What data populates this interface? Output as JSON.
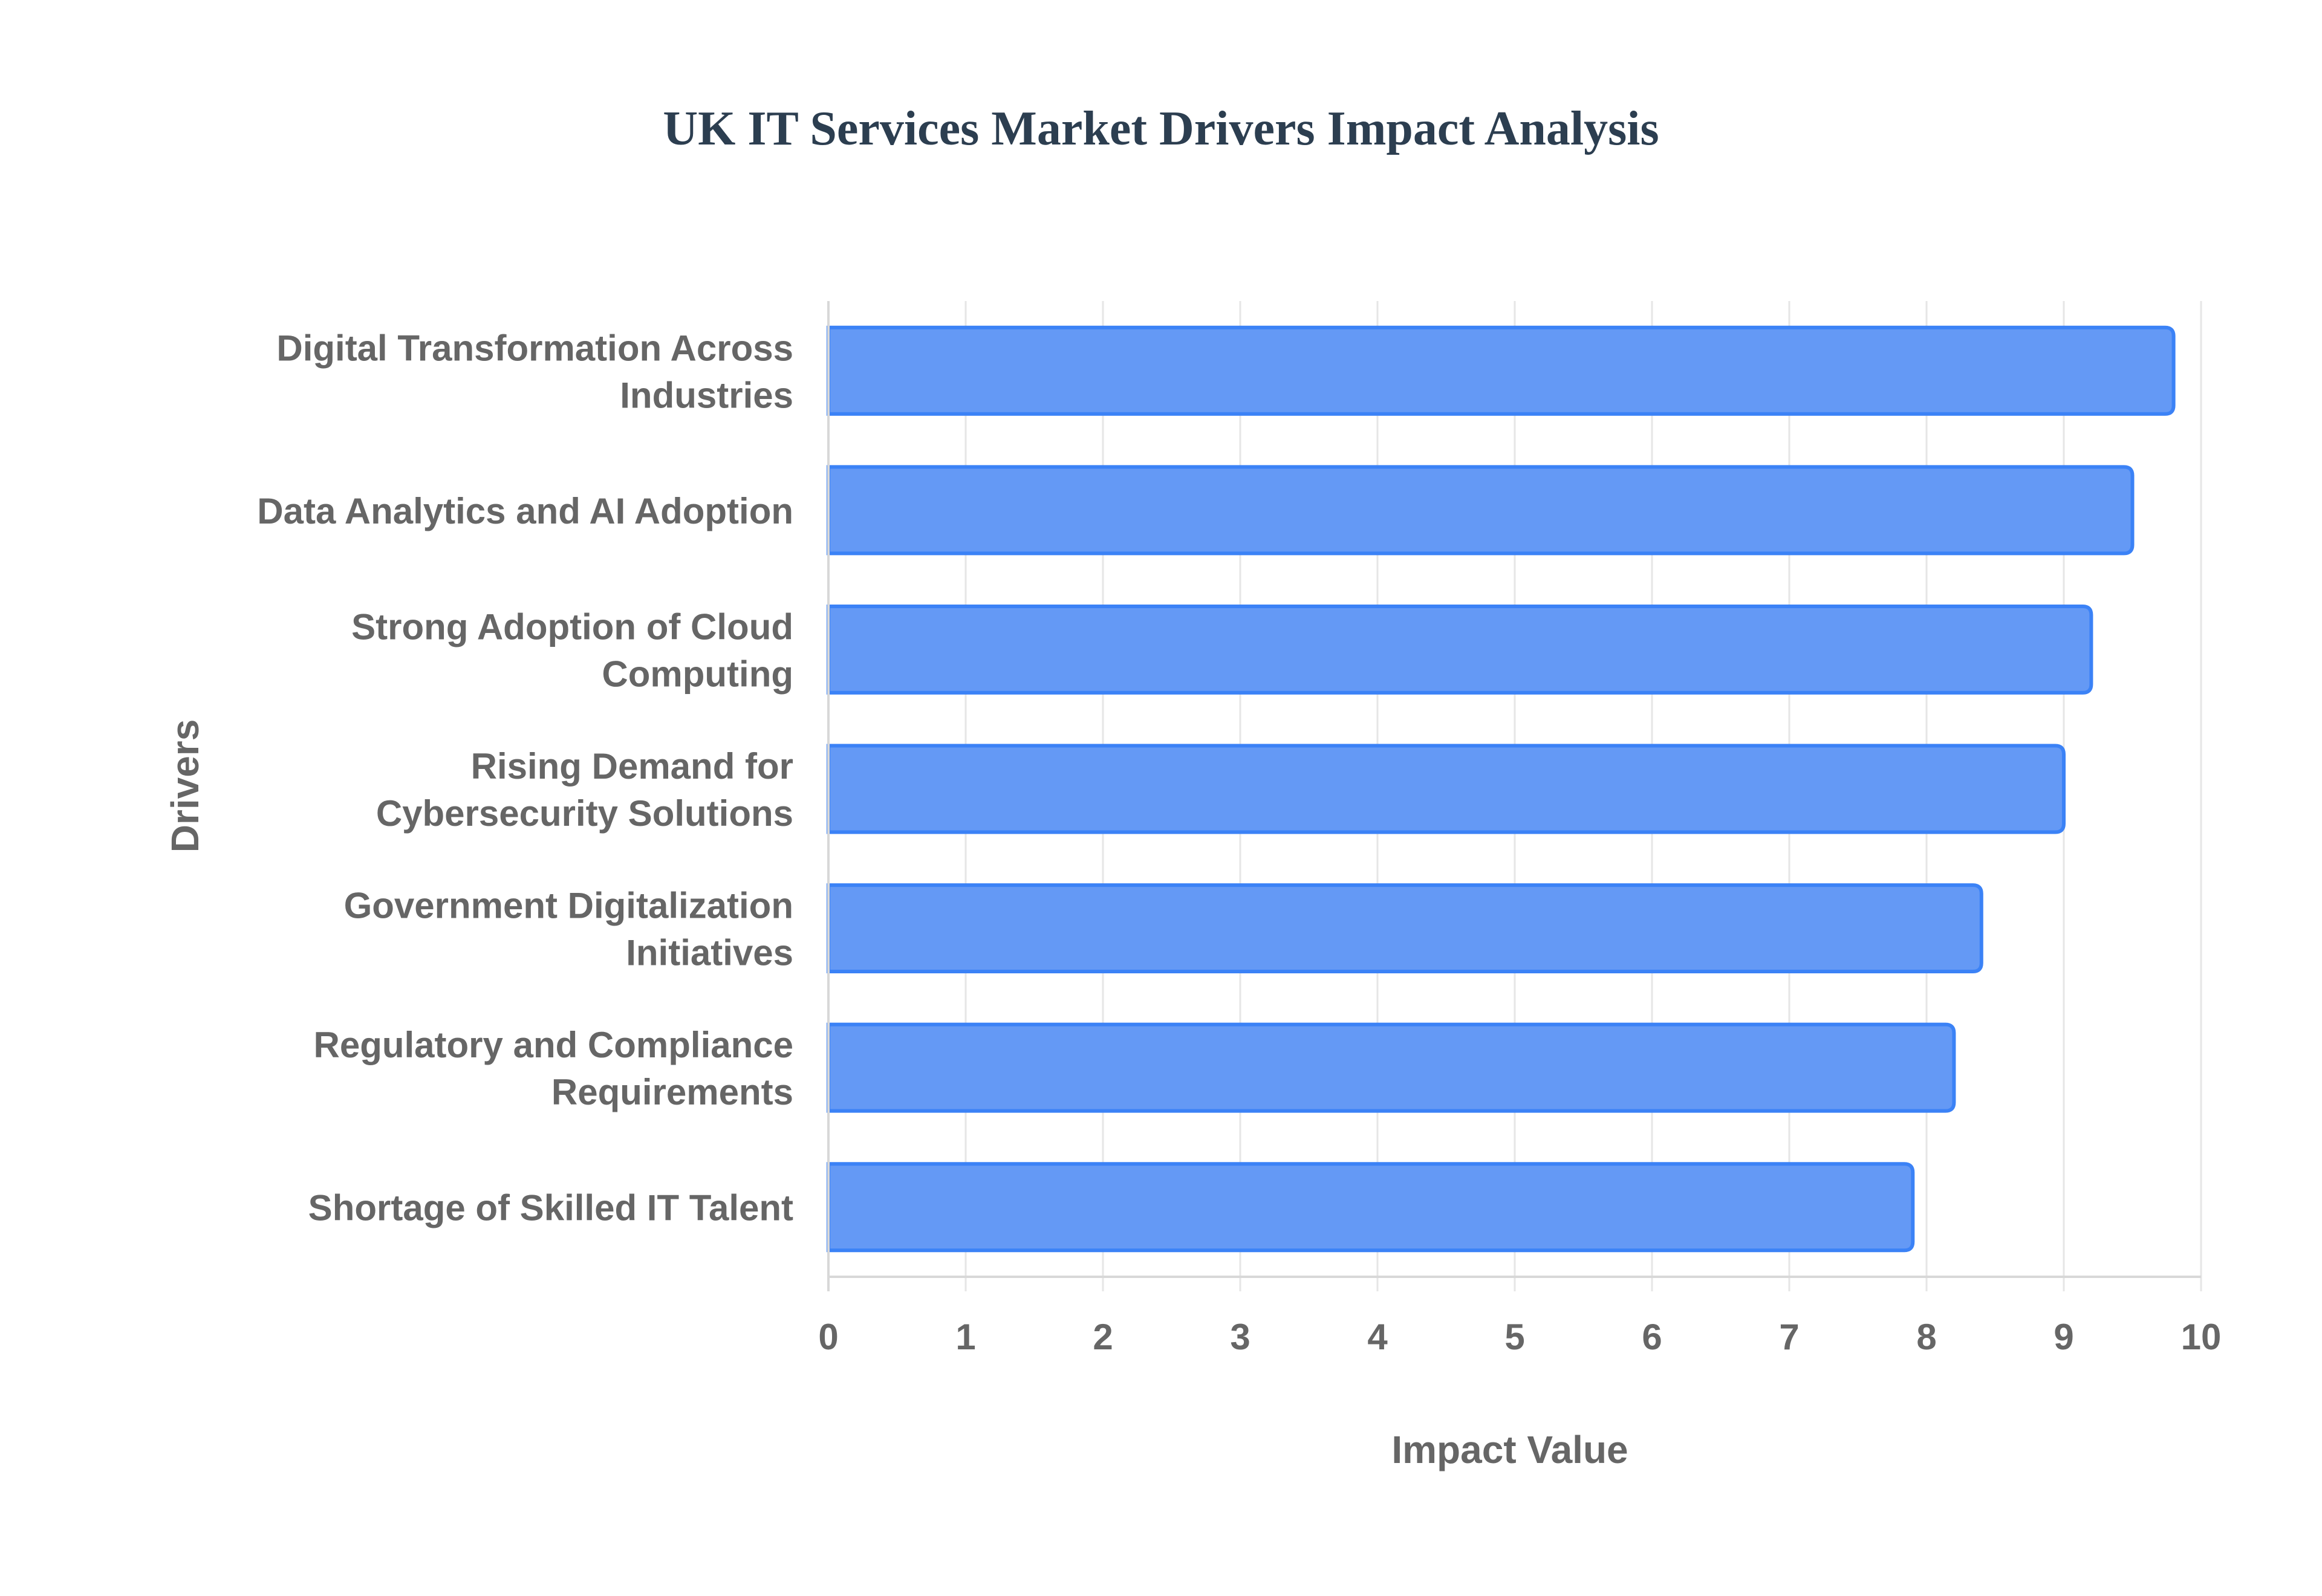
{
  "chart_data": {
    "type": "bar",
    "orientation": "horizontal",
    "title": "UK IT Services Market Drivers Impact Analysis",
    "xlabel": "Impact Value",
    "ylabel": "Drivers",
    "categories": [
      [
        "Digital Transformation Across",
        "Industries"
      ],
      [
        "Data Analytics and AI Adoption"
      ],
      [
        "Strong Adoption of Cloud",
        "Computing"
      ],
      [
        "Rising Demand for",
        "Cybersecurity Solutions"
      ],
      [
        "Government Digitalization",
        "Initiatives"
      ],
      [
        "Regulatory and Compliance",
        "Requirements"
      ],
      [
        "Shortage of Skilled IT Talent"
      ]
    ],
    "values": [
      9.8,
      9.5,
      9.2,
      9.0,
      8.4,
      8.2,
      7.9
    ],
    "xlim": [
      0,
      10
    ],
    "xticks": [
      "0",
      "1",
      "2",
      "3",
      "4",
      "5",
      "6",
      "7",
      "8",
      "9",
      "10"
    ],
    "grid": true,
    "legend": "none",
    "colors": {
      "bar_fill": "#6499f5",
      "bar_stroke": "#3b82f6",
      "grid": "#e6e6e6",
      "axis": "#d8d8d8",
      "label_text": "#666666",
      "title_text": "#2c3e50"
    }
  }
}
